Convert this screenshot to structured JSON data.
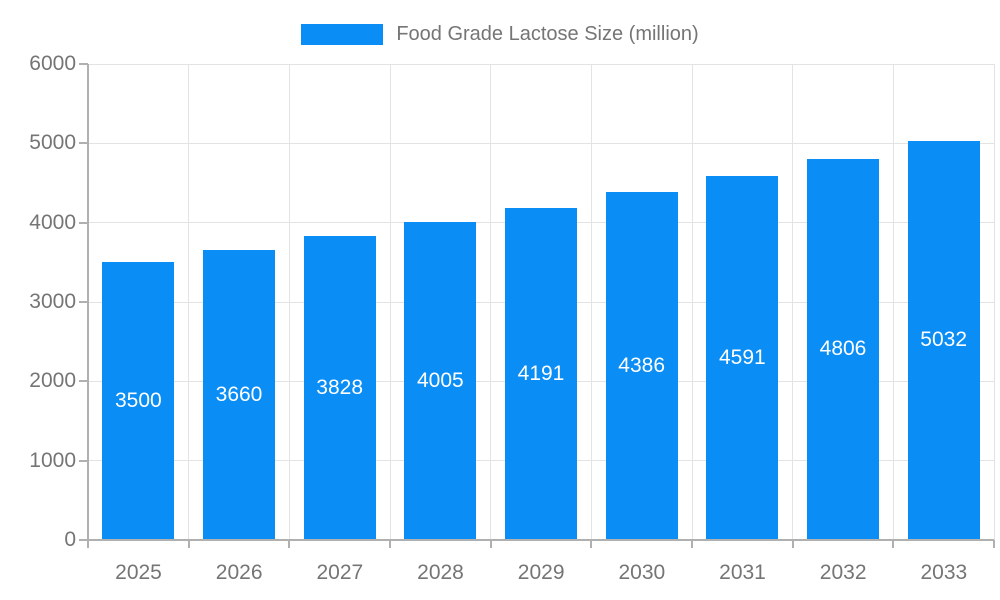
{
  "chart_data": {
    "type": "bar",
    "title": "Food Grade Lactose Size (million)",
    "legend": [
      "Food Grade Lactose Size (million)"
    ],
    "legend_position": "top-center",
    "categories": [
      "2025",
      "2026",
      "2027",
      "2028",
      "2029",
      "2030",
      "2031",
      "2032",
      "2033"
    ],
    "values": [
      3500,
      3660,
      3828,
      4005,
      4191,
      4386,
      4591,
      4806,
      5032
    ],
    "xlabel": "",
    "ylabel": "",
    "ylim": [
      0,
      6000
    ],
    "yticks": [
      0,
      1000,
      2000,
      3000,
      4000,
      5000,
      6000
    ],
    "grid": true,
    "bar_label_position": "inside-middle",
    "colors": {
      "bar": "#0a8df5",
      "bar_label": "#ffffff",
      "axis_line": "#b0b0b0",
      "gridline": "#e3e3e3",
      "tick_label": "#757575",
      "legend_text": "#757575",
      "background": "#ffffff"
    }
  }
}
